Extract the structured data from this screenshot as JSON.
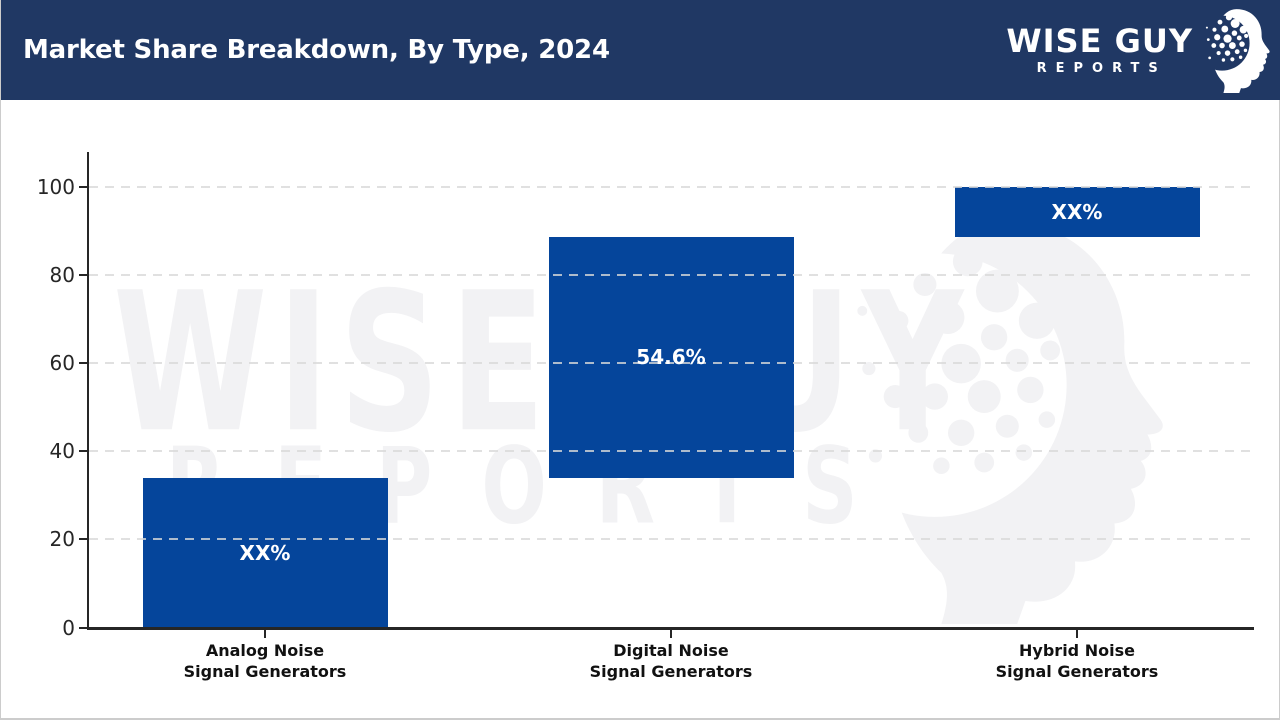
{
  "header": {
    "title": "Market Share Breakdown, By Type, 2024",
    "logo_line1": "WISE GUY",
    "logo_line2": "REPORTS"
  },
  "watermark": {
    "line1": "WISE GUY",
    "line2": "REPORTS"
  },
  "colors": {
    "header_bg": "#203864",
    "bar": "#05459b",
    "grid": "#d9d9d9",
    "axis": "#262626",
    "watermark": "#f2f2f4",
    "title_text": "#ffffff"
  },
  "chart_data": {
    "type": "bar",
    "subtype": "waterfall",
    "title": "Market Share Breakdown, By Type, 2024",
    "xlabel": "",
    "ylabel": "",
    "ylim": [
      0,
      107
    ],
    "yticks": [
      0,
      20,
      40,
      60,
      80,
      100
    ],
    "grid": "horizontal-dashed",
    "legend": "none",
    "categories": [
      {
        "line1": "Analog Noise",
        "line2": "Signal Generators"
      },
      {
        "line1": "Digital Noise",
        "line2": "Signal Generators"
      },
      {
        "line1": "Hybrid Noise",
        "line2": "Signal Generators"
      }
    ],
    "bars": [
      {
        "label": "XX%",
        "start": 0,
        "end": 34,
        "value_est": 34
      },
      {
        "label": "54.6%",
        "start": 34,
        "end": 88.6,
        "value_est": 54.6
      },
      {
        "label": "XX%",
        "start": 88.6,
        "end": 100,
        "value_est": 11.4
      }
    ]
  }
}
